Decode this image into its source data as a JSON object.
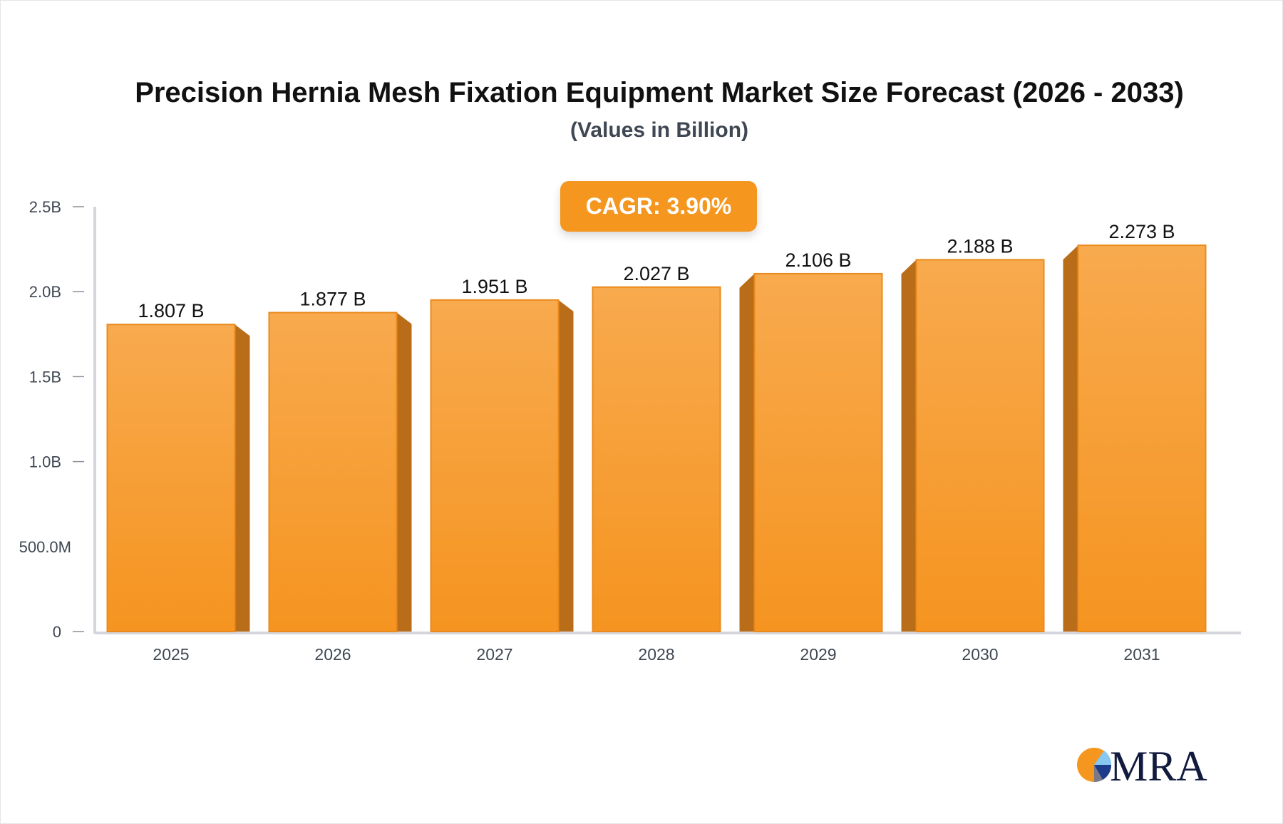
{
  "chart_data": {
    "type": "bar",
    "title": "Precision Hernia Mesh Fixation Equipment Market Size Forecast (2026 - 2033)",
    "subtitle": "(Values in Billion)",
    "annotation": "CAGR: 3.90%",
    "categories": [
      "2025",
      "2026",
      "2027",
      "2028",
      "2029",
      "2030",
      "2031"
    ],
    "values": [
      1.807,
      1.877,
      1.951,
      2.027,
      2.106,
      2.188,
      2.273
    ],
    "data_labels": [
      "1.807 B",
      "1.877 B",
      "1.951 B",
      "2.027 B",
      "2.106 B",
      "2.188 B",
      "2.273 B"
    ],
    "ylim": [
      0,
      2.5
    ],
    "yticks": [
      0,
      0.5,
      1.0,
      1.5,
      2.0,
      2.5
    ],
    "ytick_labels": [
      "0",
      "500.0M",
      "1.0B",
      "1.5B",
      "2.0B",
      "2.5B"
    ],
    "xlabel": "",
    "ylabel": "",
    "grid": false,
    "colors": {
      "bar_top": "#f8aa4e",
      "bar_bottom": "#f59420",
      "bar_side": "#b96d19",
      "axis": "#d4d6dc"
    }
  },
  "logo": {
    "text": "MRA"
  }
}
